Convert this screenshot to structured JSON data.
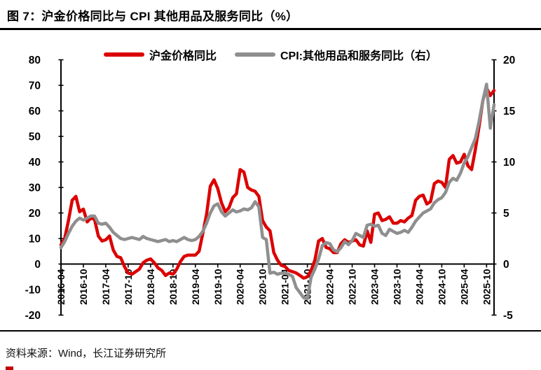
{
  "figure": {
    "title": "图 7：沪金价格同比与 CPI 其他用品及服务同比（%）",
    "source": "资料来源：Wind，长江证券研究所"
  },
  "colors": {
    "gold_line": "#dc0000",
    "cpi_line": "#8f8f8f",
    "axis": "#000000"
  },
  "chart_data": {
    "type": "line",
    "title": "沪金价格同比与 CPI 其他用品及服务同比（%）",
    "legend_position": "top",
    "grid": false,
    "left_axis": {
      "min": -20,
      "max": 80,
      "step": 10,
      "ticks": [
        80,
        70,
        60,
        50,
        40,
        30,
        20,
        10,
        0,
        -10,
        -20
      ]
    },
    "right_axis": {
      "min": -5,
      "max": 20,
      "step": 5,
      "ticks": [
        20,
        15,
        10,
        5,
        0,
        -5
      ]
    },
    "x_tick_every": 6,
    "x_tick_labels": [
      "2016-04",
      "2016-10",
      "2017-04",
      "2017-10",
      "2018-04",
      "2018-10",
      "2019-04",
      "2019-10",
      "2020-04",
      "2020-10",
      "2021-04",
      "2021-10",
      "2022-04",
      "2022-10",
      "2023-04",
      "2023-10",
      "2024-04",
      "2024-10",
      "2025-04",
      "2025-10"
    ],
    "x": [
      "2016-04",
      "2016-05",
      "2016-06",
      "2016-07",
      "2016-08",
      "2016-09",
      "2016-10",
      "2016-11",
      "2016-12",
      "2017-01",
      "2017-02",
      "2017-03",
      "2017-04",
      "2017-05",
      "2017-06",
      "2017-07",
      "2017-08",
      "2017-09",
      "2017-10",
      "2017-11",
      "2017-12",
      "2018-01",
      "2018-02",
      "2018-03",
      "2018-04",
      "2018-05",
      "2018-06",
      "2018-07",
      "2018-08",
      "2018-09",
      "2018-10",
      "2018-11",
      "2018-12",
      "2019-01",
      "2019-02",
      "2019-03",
      "2019-04",
      "2019-05",
      "2019-06",
      "2019-07",
      "2019-08",
      "2019-09",
      "2019-10",
      "2019-11",
      "2019-12",
      "2020-01",
      "2020-02",
      "2020-03",
      "2020-04",
      "2020-05",
      "2020-06",
      "2020-07",
      "2020-08",
      "2020-09",
      "2020-10",
      "2020-11",
      "2020-12",
      "2021-01",
      "2021-02",
      "2021-03",
      "2021-04",
      "2021-05",
      "2021-06",
      "2021-07",
      "2021-08",
      "2021-09",
      "2021-10",
      "2021-11",
      "2021-12",
      "2022-01",
      "2022-02",
      "2022-03",
      "2022-04",
      "2022-05",
      "2022-06",
      "2022-07",
      "2022-08",
      "2022-09",
      "2022-10",
      "2022-11",
      "2022-12",
      "2023-01",
      "2023-02",
      "2023-03",
      "2023-04",
      "2023-05",
      "2023-06",
      "2023-07",
      "2023-08",
      "2023-09",
      "2023-10",
      "2023-11",
      "2023-12",
      "2024-01",
      "2024-02",
      "2024-03",
      "2024-04",
      "2024-05",
      "2024-06",
      "2024-07",
      "2024-08",
      "2024-09",
      "2024-10",
      "2024-11",
      "2024-12",
      "2025-01",
      "2025-02",
      "2025-03",
      "2025-04",
      "2025-05",
      "2025-06",
      "2025-07",
      "2025-08",
      "2025-09",
      "2025-10",
      "2025-11",
      "2025-12"
    ],
    "series": [
      {
        "name": "沪金价格同比",
        "axis": "left",
        "color": "#dc0000",
        "values": [
          7.5,
          10,
          17,
          25,
          26.5,
          20.5,
          21.5,
          16.5,
          18,
          17.5,
          11,
          9,
          9.5,
          11,
          5.5,
          3,
          2.5,
          -1,
          -3.5,
          -4,
          -3,
          -2,
          0.5,
          1.5,
          2,
          0.5,
          -1.5,
          -2.5,
          -4.5,
          -3.5,
          -4,
          -2,
          1,
          3,
          3.5,
          3.5,
          3.5,
          5,
          12,
          19.5,
          30.5,
          33,
          29.5,
          24,
          20.5,
          22,
          26,
          27.5,
          37,
          36,
          30,
          29,
          28.5,
          26.5,
          17,
          14.5,
          13,
          4.5,
          1.5,
          -0.5,
          -1,
          -2.5,
          -3,
          -3.5,
          -4.5,
          -5.5,
          -5,
          -2.5,
          1.5,
          9,
          10,
          6.5,
          6,
          4.5,
          4.5,
          8,
          9.5,
          8.5,
          9,
          9.5,
          7.5,
          7,
          13,
          8.5,
          19.5,
          20,
          17,
          17.5,
          18.5,
          16,
          16,
          17,
          16.5,
          18,
          19,
          25,
          26.5,
          27,
          23.5,
          24.5,
          31.5,
          32.5,
          32,
          30,
          41,
          42.5,
          39.5,
          40,
          43,
          38.5,
          37,
          45,
          54,
          64,
          69,
          66,
          68
        ]
      },
      {
        "name": "CPI:其他用品和服务同比（右）",
        "axis": "right",
        "color": "#8f8f8f",
        "values": [
          1.6,
          2.2,
          3,
          3.7,
          4.2,
          4.5,
          4.3,
          4.5,
          4.7,
          4.7,
          4,
          3.9,
          4,
          3.6,
          3.1,
          2.8,
          2.5,
          2.4,
          2.5,
          2.6,
          2.5,
          2.4,
          2.7,
          2.5,
          2.4,
          2.3,
          2.2,
          2.3,
          2.4,
          2.2,
          2.3,
          2.2,
          2.4,
          2.6,
          2.4,
          2.3,
          2.4,
          2.7,
          3.2,
          4,
          5,
          5.7,
          5.9,
          5.1,
          4.7,
          5,
          5.3,
          5.1,
          5.2,
          5.4,
          5.3,
          5.5,
          6.1,
          5.6,
          2.6,
          2.4,
          -0.9,
          -0.8,
          -1,
          -0.9,
          -0.9,
          -1,
          -1.2,
          -2.3,
          -2.8,
          -3.3,
          -3.4,
          -1.3,
          -0.5,
          0.5,
          1.8,
          2.1,
          2,
          1.4,
          1.2,
          1.6,
          2.2,
          1.9,
          2.3,
          3,
          2.8,
          2.6,
          3.8,
          3.9,
          3.7,
          3.8,
          3,
          2.8,
          3.4,
          3.2,
          3,
          3.1,
          3.3,
          3.1,
          3.6,
          4.2,
          4.6,
          5,
          5.2,
          5.4,
          6,
          6.3,
          6.5,
          7,
          8,
          8.4,
          8.2,
          8.9,
          9.9,
          10.5,
          11.4,
          12.3,
          14,
          16,
          17.6,
          13.3,
          15.6
        ]
      }
    ]
  }
}
